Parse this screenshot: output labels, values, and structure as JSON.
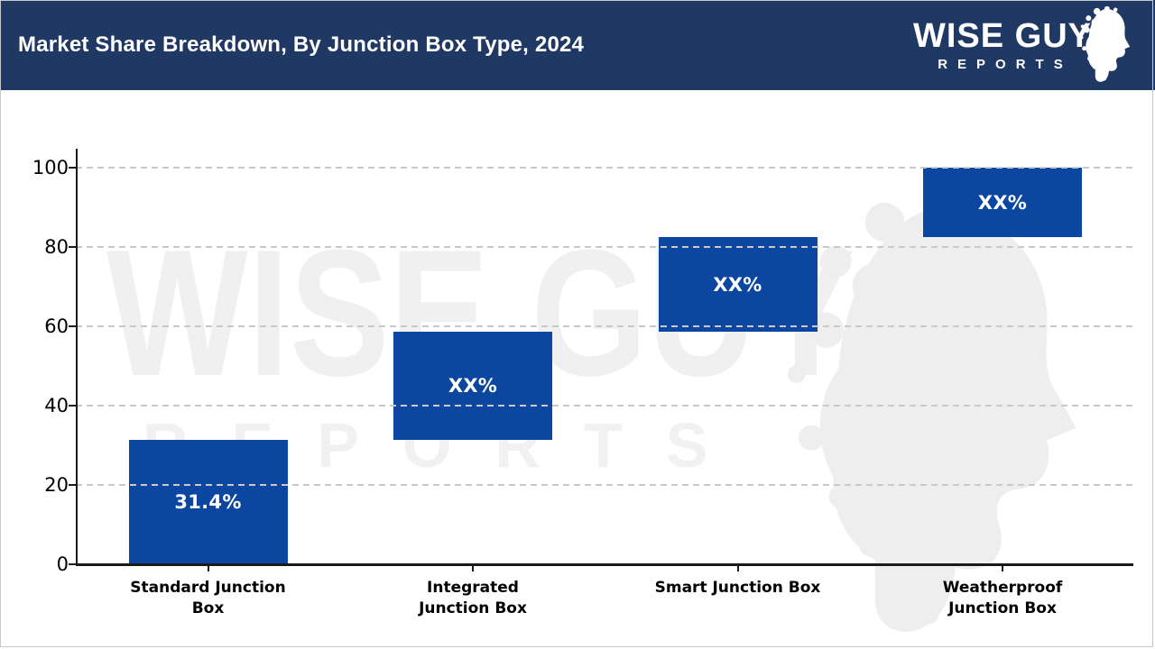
{
  "header": {
    "title": "Market Share Breakdown, By Junction Box Type, 2024",
    "logo": {
      "name": "Wise Guy Reports",
      "line1": "WISE GUY",
      "line2": "REPORTS"
    }
  },
  "watermark": {
    "line1": "WISE GUY",
    "line2": "REPORTS"
  },
  "colors": {
    "header_background": "#203864",
    "bar_blue": "#0B47A0",
    "gridline_gray": "#c9c9c9",
    "watermark_gray": "#f0f0f0"
  },
  "chart_data": {
    "type": "bar",
    "variant": "waterfall",
    "title": "Market Share Breakdown, By Junction Box Type, 2024",
    "categories": [
      "Standard Junction Box",
      "Integrated Junction Box",
      "Smart Junction Box",
      "Weatherproof Junction Box"
    ],
    "category_label_lines": [
      [
        "Standard Junction",
        "Box"
      ],
      [
        "Integrated",
        "Junction Box"
      ],
      [
        "Smart Junction Box"
      ],
      [
        "Weatherproof",
        "Junction Box"
      ]
    ],
    "segments": [
      {
        "category": "Standard Junction Box",
        "start": 0,
        "end": 31.4,
        "label": "31.4%"
      },
      {
        "category": "Integrated Junction Box",
        "start": 31.4,
        "end": 58.6,
        "label": "XX%"
      },
      {
        "category": "Smart Junction Box",
        "start": 58.6,
        "end": 82.5,
        "label": "XX%"
      },
      {
        "category": "Weatherproof Junction Box",
        "start": 82.5,
        "end": 100,
        "label": "XX%"
      }
    ],
    "ylim": [
      0,
      100
    ],
    "yticks": [
      0,
      20,
      40,
      60,
      80,
      100
    ],
    "xlabel": "",
    "ylabel": "",
    "grid": {
      "axis": "y",
      "style": "dashed",
      "drawn_above_bars": true
    },
    "legend": null,
    "bar_color": "#0B47A0",
    "bar_label_color": "#ffffff"
  }
}
